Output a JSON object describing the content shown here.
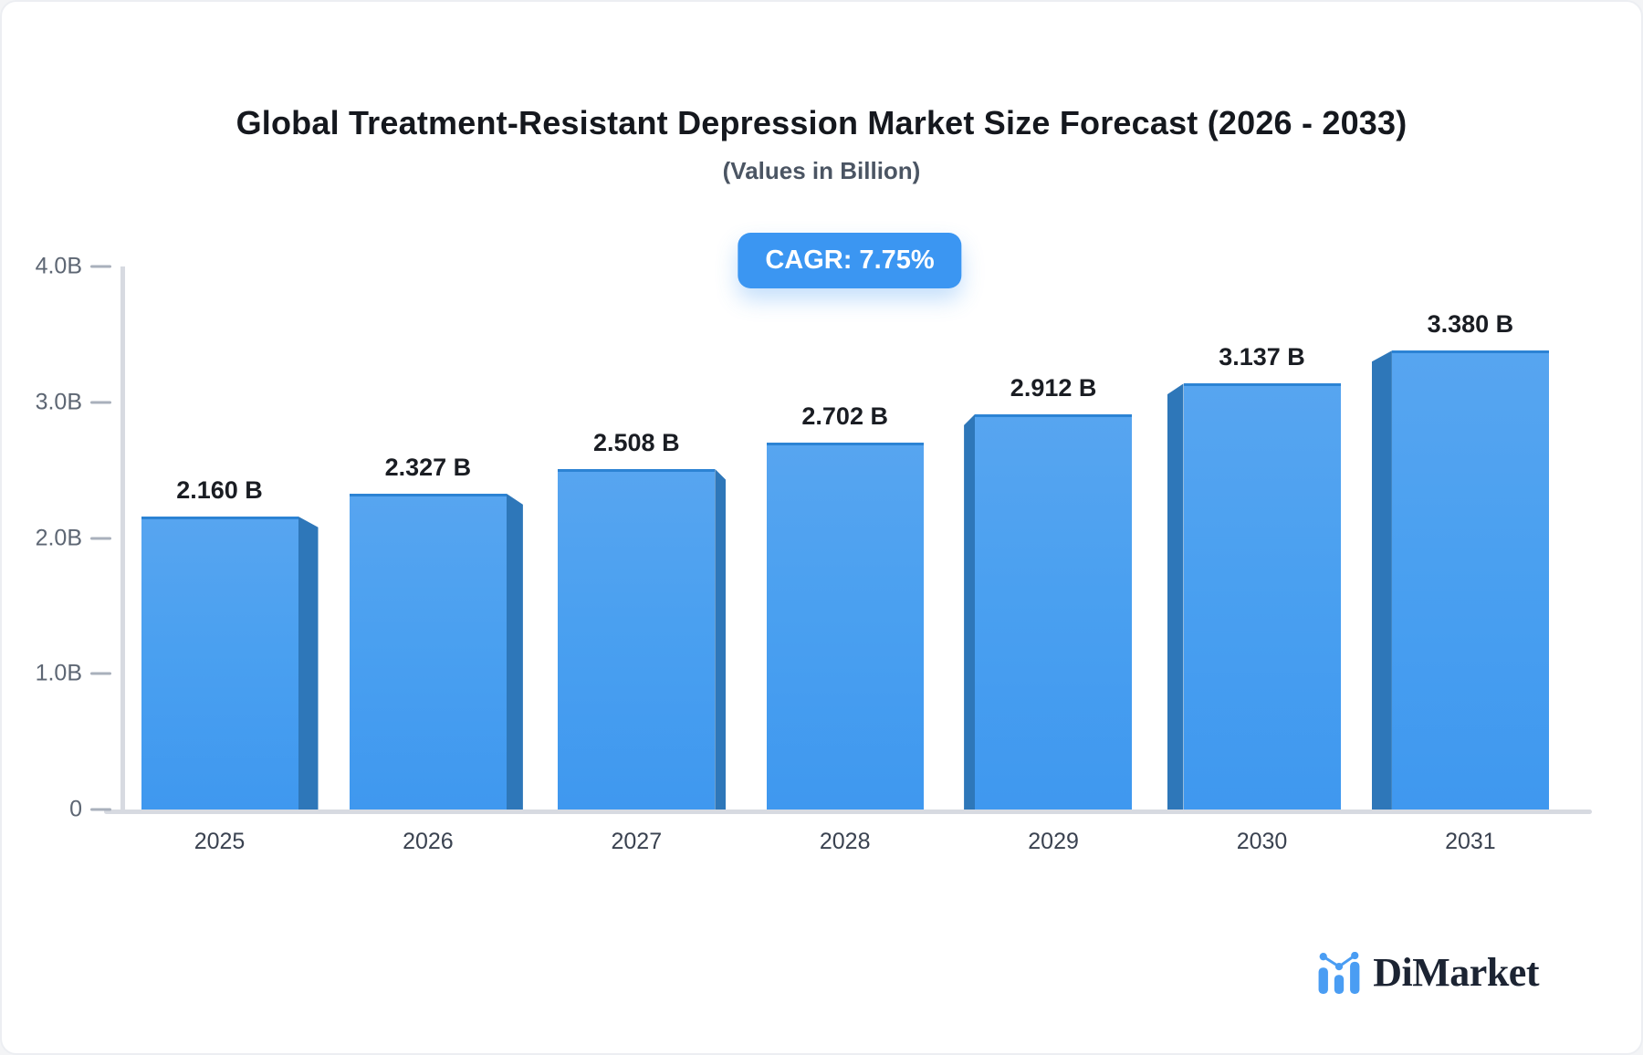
{
  "header": {
    "title": "Global Treatment-Resistant Depression Market Size Forecast (2026 - 2033)",
    "subtitle": "(Values in Billion)",
    "cagr_badge": "CAGR: 7.75%"
  },
  "chart_data": {
    "type": "bar",
    "title": "Global Treatment-Resistant Depression Market Size Forecast (2026 - 2033)",
    "subtitle": "(Values in Billion)",
    "annotation": "CAGR: 7.75%",
    "categories": [
      "2025",
      "2026",
      "2027",
      "2028",
      "2029",
      "2030",
      "2031"
    ],
    "values": [
      2.16,
      2.327,
      2.508,
      2.702,
      2.912,
      3.137,
      3.38
    ],
    "value_labels": [
      "2.160 B",
      "2.327 B",
      "2.508 B",
      "2.702 B",
      "2.912 B",
      "3.137 B",
      "3.380 B"
    ],
    "y_ticks": [
      {
        "label": "4.0B",
        "value": 4.0
      },
      {
        "label": "3.0B",
        "value": 3.0
      },
      {
        "label": "2.0B",
        "value": 2.0
      },
      {
        "label": "1.0B",
        "value": 1.0
      },
      {
        "label": "0",
        "value": 0
      }
    ],
    "ylim": [
      0,
      4.0
    ],
    "xlabel": "",
    "ylabel": "",
    "grid": false,
    "legend": "none",
    "colors": {
      "bar_top": "#57a5f0",
      "bar_bottom": "#3f98ef",
      "bar_side": "#2e77b9",
      "bar_top_edge": "#2c83d4",
      "badge": "#3b96f2",
      "axis": "#d7dae1",
      "tick_text": "#5d6673",
      "category_text": "#3a4250",
      "value_text": "#1a1d23",
      "brand_blue": "#4a9df3",
      "brand_dark": "#1c2433"
    }
  },
  "footer": {
    "brand": "DiMarket"
  }
}
